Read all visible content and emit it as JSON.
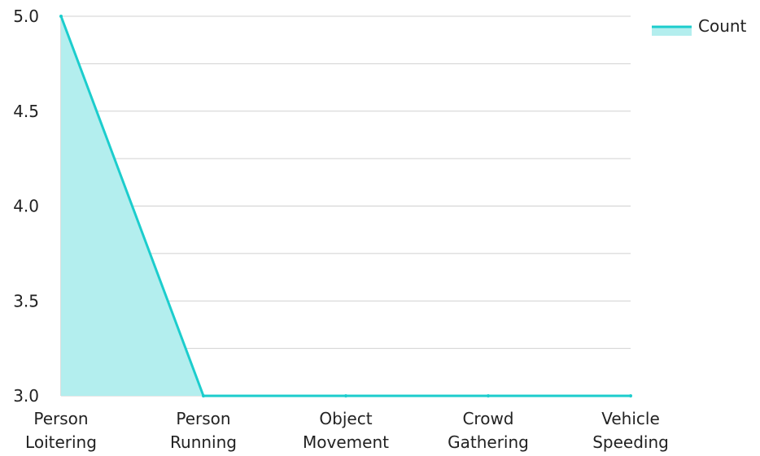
{
  "chart_data": {
    "type": "area",
    "categories": [
      [
        "Person",
        "Loitering"
      ],
      [
        "Person",
        "Running"
      ],
      [
        "Object",
        "Movement"
      ],
      [
        "Crowd",
        "Gathering"
      ],
      [
        "Vehicle",
        "Speeding"
      ]
    ],
    "series": [
      {
        "name": "Count",
        "values": [
          5,
          3,
          3,
          3,
          3
        ]
      }
    ],
    "y_ticks": [
      "3.0",
      "3.5",
      "4.0",
      "4.5",
      "5.0"
    ],
    "ylim": [
      3,
      5
    ],
    "grid": true,
    "legend": "top-right",
    "colors": {
      "line": "#1ccdcd",
      "fill": "#b3eeee",
      "grid": "#d0d0d0",
      "axis": "#bbbbbb"
    }
  }
}
